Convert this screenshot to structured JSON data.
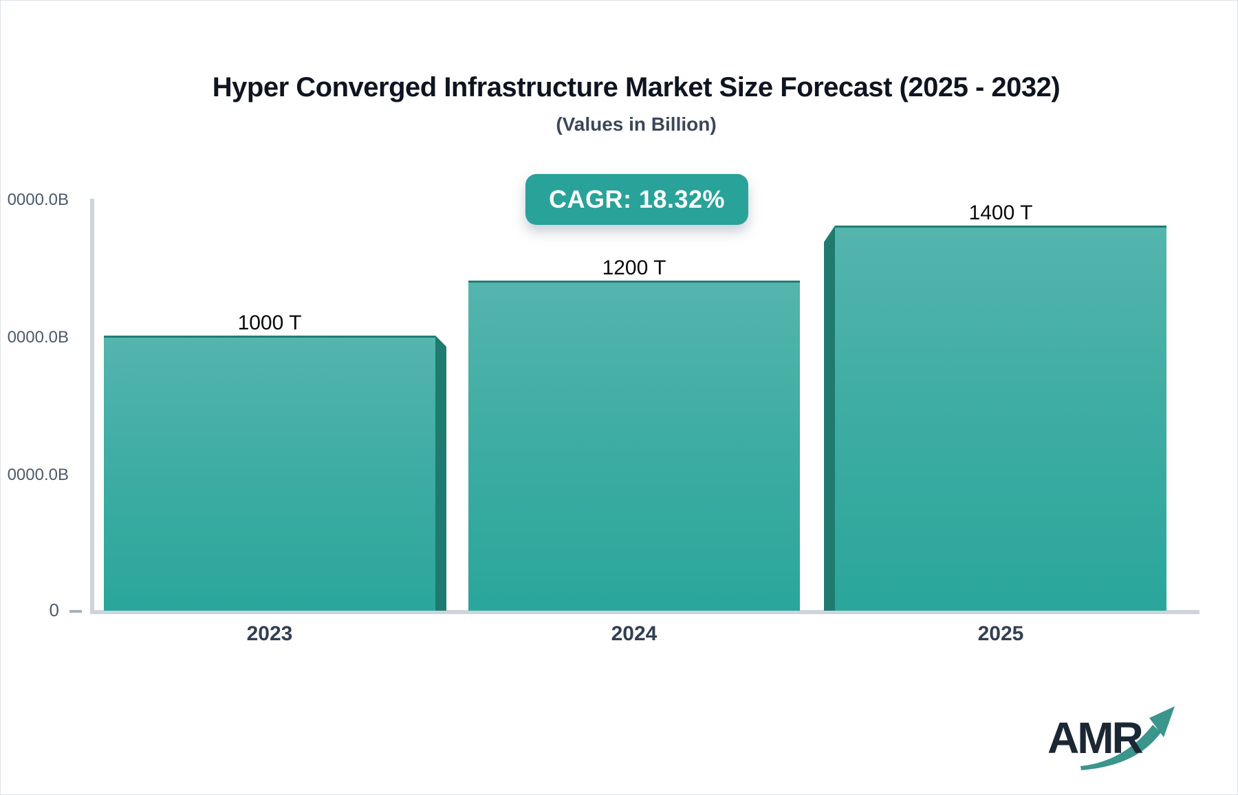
{
  "title": "Hyper Converged Infrastructure Market Size Forecast (2025 - 2032)",
  "subtitle": "(Values in Billion)",
  "cagr_badge": "CAGR: 18.32%",
  "logo": {
    "text": "AMR",
    "arrow_icon": "growth-arrow-icon"
  },
  "colors": {
    "accent_teal": "#29a29a",
    "bar_gradient_top": "#54b5ad",
    "bar_gradient_bottom": "#2aa69b",
    "bar_top_edge": "#1f7e75",
    "bar_bevel_side": "#1f7a70",
    "axis_gray": "#ced3dc",
    "title_color": "#0e1420",
    "subtitle_color": "#3a4759",
    "logo_navy": "#1c2734",
    "logo_arrow_teal": "#3a958c"
  },
  "chart_data": {
    "type": "bar",
    "categories": [
      "2023",
      "2024",
      "2025"
    ],
    "values": [
      1000,
      1200,
      1400
    ],
    "bar_labels": [
      "1000 T",
      "1200 T",
      "1400 T"
    ],
    "title": "Hyper Converged Infrastructure Market Size Forecast (2025 - 2032)",
    "subtitle": "(Values in Billion)",
    "annotation": "CAGR: 18.32%",
    "xlabel": "",
    "ylabel": "",
    "y_tick_labels": [
      "0000.0B",
      "0000.0B",
      "0000.0B",
      "0"
    ],
    "ylim": [
      0,
      1490
    ],
    "grid": false,
    "legend": false,
    "bar_style": "3d-beveled-teal-gradient"
  }
}
